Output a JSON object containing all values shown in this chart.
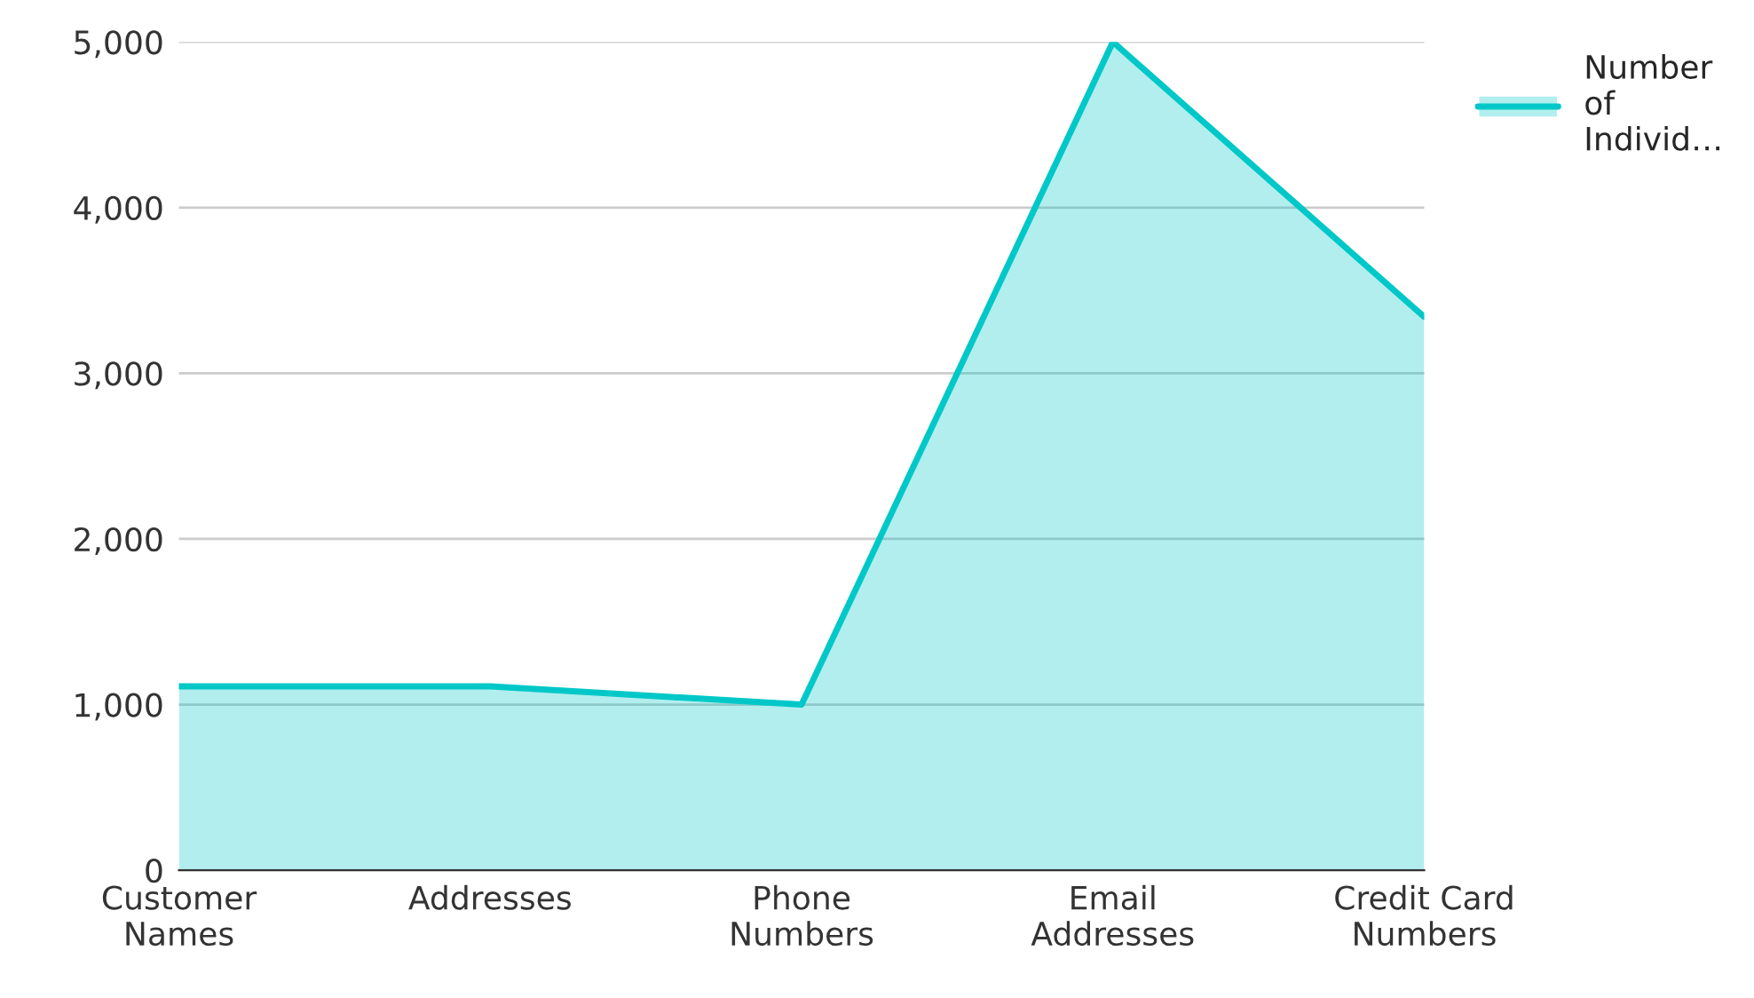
{
  "chart_data": {
    "type": "area",
    "categories": [
      "Customer Names",
      "Addresses",
      "Phone Numbers",
      "Email Addresses",
      "Credit Card Numbers"
    ],
    "series": [
      {
        "name": "Number of Individ…",
        "color": "#00c8c8",
        "values": [
          1110,
          1110,
          1000,
          5000,
          3340
        ]
      }
    ],
    "ylim": [
      0,
      5000
    ],
    "yticks": [
      {
        "value": 0,
        "label": "0"
      },
      {
        "value": 1000,
        "label": "1,000"
      },
      {
        "value": 2000,
        "label": "2,000"
      },
      {
        "value": 3000,
        "label": "3,000"
      },
      {
        "value": 4000,
        "label": "4,000"
      },
      {
        "value": 5000,
        "label": "5,000"
      }
    ],
    "grid": "y",
    "legend": "top right"
  }
}
